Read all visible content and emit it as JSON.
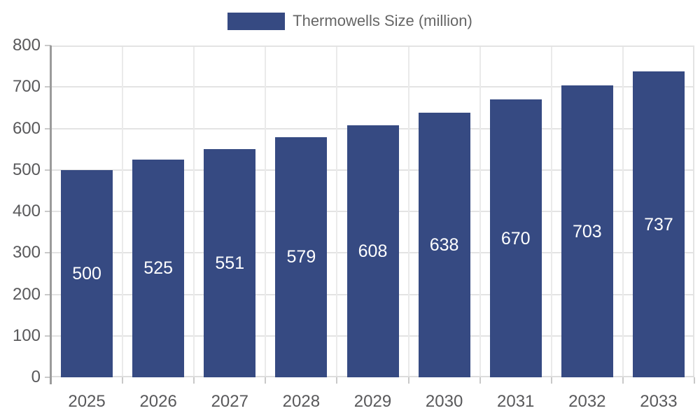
{
  "legend": {
    "label": "Thermowells Size (million)"
  },
  "chart_data": {
    "type": "bar",
    "title": "",
    "series_name": "Thermowells Size (million)",
    "categories": [
      "2025",
      "2026",
      "2027",
      "2028",
      "2029",
      "2030",
      "2031",
      "2032",
      "2033"
    ],
    "values": [
      500,
      525,
      551,
      579,
      608,
      638,
      670,
      703,
      737
    ],
    "xlabel": "",
    "ylabel": "",
    "ylim": [
      0,
      800
    ],
    "ytick_step": 100,
    "yticks": [
      0,
      100,
      200,
      300,
      400,
      500,
      600,
      700,
      800
    ],
    "grid": true,
    "bar_value_labels_visible": true,
    "legend_position": "top-center"
  },
  "colors": {
    "bar": "#364a82",
    "bar_label": "#ffffff",
    "legend_text": "#666666",
    "axis_text": "#59595b",
    "grid_h": "#e3e3e3",
    "grid_v": "#eaeaea",
    "axis_left": "#9b9b9b",
    "axis_bottom": "#dddddd",
    "tick": "#c9c9c9",
    "background": "#ffffff"
  }
}
